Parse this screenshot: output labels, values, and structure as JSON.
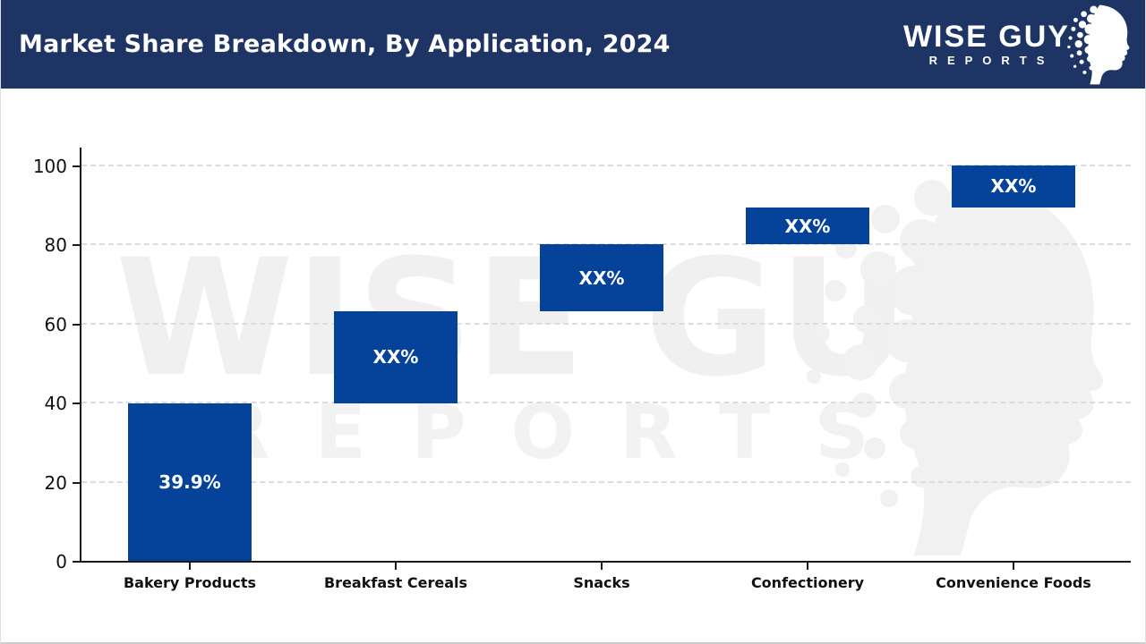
{
  "header": {
    "title": "Market Share Breakdown, By Application, 2024",
    "logo": {
      "line1": "WISE GUY",
      "line2": "REPORTS"
    }
  },
  "watermark": {
    "line1": "WISE GUY",
    "line2": "REPORTS"
  },
  "chart_data": {
    "type": "bar",
    "subtype": "waterfall",
    "title": "Market Share Breakdown, By Application, 2024",
    "categories": [
      "Bakery Products",
      "Breakfast Cereals",
      "Snacks",
      "Confectionery",
      "Convenience Foods"
    ],
    "segments": [
      {
        "category": "Bakery Products",
        "start": 0,
        "end": 39.9,
        "label": "39.9%"
      },
      {
        "category": "Breakfast Cereals",
        "start": 39.9,
        "end": 63.1,
        "label": "XX%"
      },
      {
        "category": "Snacks",
        "start": 63.1,
        "end": 80,
        "label": "XX%"
      },
      {
        "category": "Confectionery",
        "start": 80,
        "end": 89.4,
        "label": "XX%"
      },
      {
        "category": "Convenience Foods",
        "start": 89.4,
        "end": 100,
        "label": "XX%"
      }
    ],
    "y_ticks": [
      0,
      20,
      40,
      60,
      80,
      100
    ],
    "ylim": [
      0,
      105
    ],
    "xlabel": "",
    "ylabel": "",
    "grid": "dashed-horizontal",
    "legend": "none",
    "bar_color": "#05439a",
    "bar_label_color": "#ffffff",
    "axis_color": "#1a1a1a",
    "grid_color": "#dcdcdc",
    "header_color": "#1e3464"
  }
}
